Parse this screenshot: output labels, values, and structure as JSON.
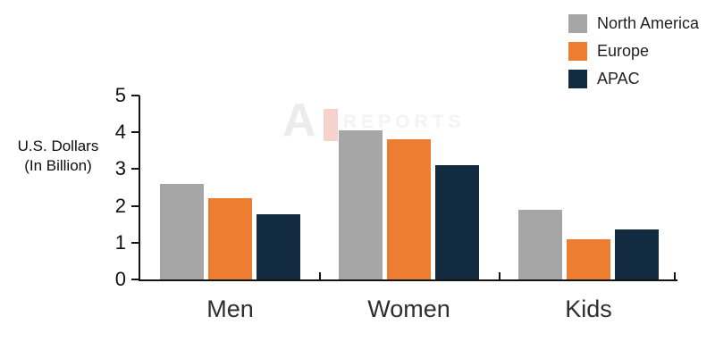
{
  "y_axis": {
    "title_line1": "U.S. Dollars",
    "title_line2": "(In Billion)",
    "ticks": [
      0,
      1,
      2,
      3,
      4,
      5
    ]
  },
  "watermark": {
    "logo_letter": "A",
    "text": "REPORTS",
    "logo_color": "#ececec",
    "logo_accent_color": "#f6d2cc",
    "text_color": "#f3f3f3"
  },
  "chart_data": {
    "type": "bar",
    "title": "",
    "categories": [
      "Men",
      "Women",
      "Kids"
    ],
    "series": [
      {
        "name": "North America",
        "color": "#a6a6a6",
        "values": [
          2.6,
          4.05,
          1.9
        ]
      },
      {
        "name": "Europe",
        "color": "#ed7d31",
        "values": [
          2.2,
          3.8,
          1.1
        ]
      },
      {
        "name": "APAC",
        "color": "#122b40",
        "values": [
          1.78,
          3.1,
          1.35
        ]
      }
    ],
    "xlabel": "",
    "ylabel": "U.S. Dollars (In Billion)",
    "ylim": [
      0,
      5
    ],
    "grid": false,
    "legend_position": "top-right",
    "axis_color": "#141414"
  }
}
